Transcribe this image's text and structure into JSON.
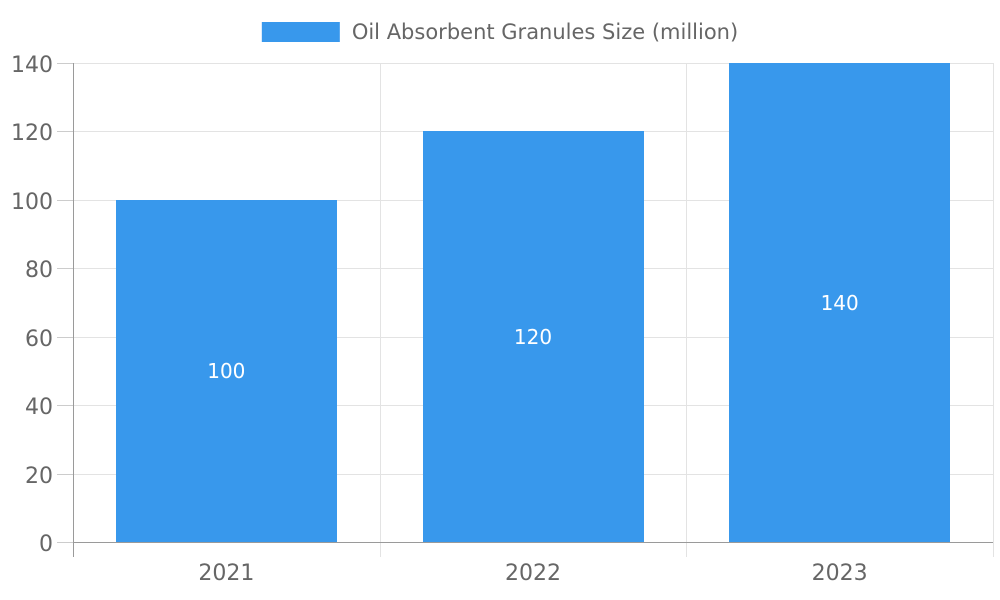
{
  "chart_data": {
    "type": "bar",
    "title": "Oil Absorbent Granules Size (million)",
    "legend_entries": [
      "Oil Absorbent Granules Size (million)"
    ],
    "categories": [
      "2021",
      "2022",
      "2023"
    ],
    "series": [
      {
        "name": "Oil Absorbent Granules Size (million)",
        "values": [
          100,
          120,
          140
        ]
      }
    ],
    "bar_value_labels": [
      "100",
      "120",
      "140"
    ],
    "xlabel": "",
    "ylabel": "",
    "ylim": [
      0,
      140
    ],
    "yticks": [
      0,
      20,
      40,
      60,
      80,
      100,
      120,
      140
    ],
    "grid": true,
    "legend_position": "top-center"
  },
  "colors": {
    "bar": "#3898EC",
    "axis_line": "#9a9a9a",
    "tick_line": "#cccccc",
    "gridline": "#e3e3e3",
    "boundary_line": "#e3e3e3",
    "label_text": "#666666",
    "value_label_text": "#ffffff",
    "background": "#ffffff"
  }
}
